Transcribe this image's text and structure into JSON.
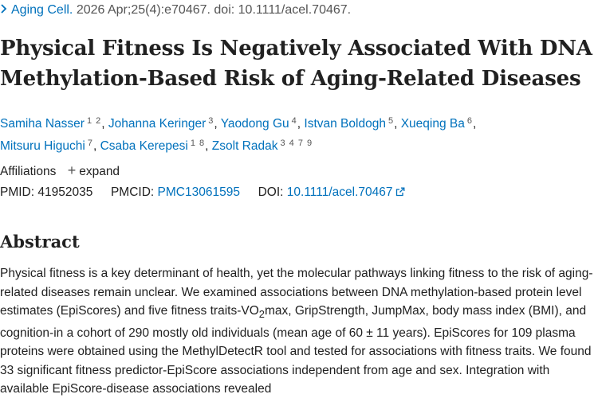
{
  "citation": {
    "journal": "Aging Cell.",
    "details": "2026 Apr;25(4):e70467. doi: 10.1111/acel.70467."
  },
  "article": {
    "title": "Physical Fitness Is Negatively Associated With DNA Methylation-Based Risk of Aging-Related Diseases"
  },
  "authors": [
    {
      "name": "Samiha Nasser",
      "affils": "1 2"
    },
    {
      "name": "Johanna Keringer",
      "affils": "3"
    },
    {
      "name": "Yaodong Gu",
      "affils": "4"
    },
    {
      "name": "Istvan Boldogh",
      "affils": "5"
    },
    {
      "name": "Xueqing Ba",
      "affils": "6"
    },
    {
      "name": "Mitsuru Higuchi",
      "affils": "7"
    },
    {
      "name": "Csaba Kerepesi",
      "affils": "1 8"
    },
    {
      "name": "Zsolt Radak",
      "affils": "3 4 7 9"
    }
  ],
  "affiliations": {
    "label": "Affiliations",
    "expand_label": "expand"
  },
  "identifiers": {
    "pmid_label": "PMID:",
    "pmid": "41952035",
    "pmcid_label": "PMCID:",
    "pmcid": "PMC13061595",
    "doi_label": "DOI:",
    "doi": "10.1111/acel.70467"
  },
  "abstract": {
    "heading": "Abstract",
    "part1": "Physical fitness is a key determinant of health, yet the molecular pathways linking fitness to the risk of aging-related diseases remain unclear. We examined associations between DNA methylation-based protein level estimates (EpiScores) and five fitness traits-VO",
    "subscript": "2",
    "part2": "max, GripStrength, JumpMax, body mass index (BMI), and cognition-in a cohort of 290 mostly old individuals (mean age of 60 ± 11 years). EpiScores for 109 plasma proteins were obtained using the MethylDetectR tool and tested for associations with fitness traits. We found 33 significant fitness predictor-EpiScore associations independent from age and sex. Integration with available EpiScore-disease associations revealed"
  }
}
